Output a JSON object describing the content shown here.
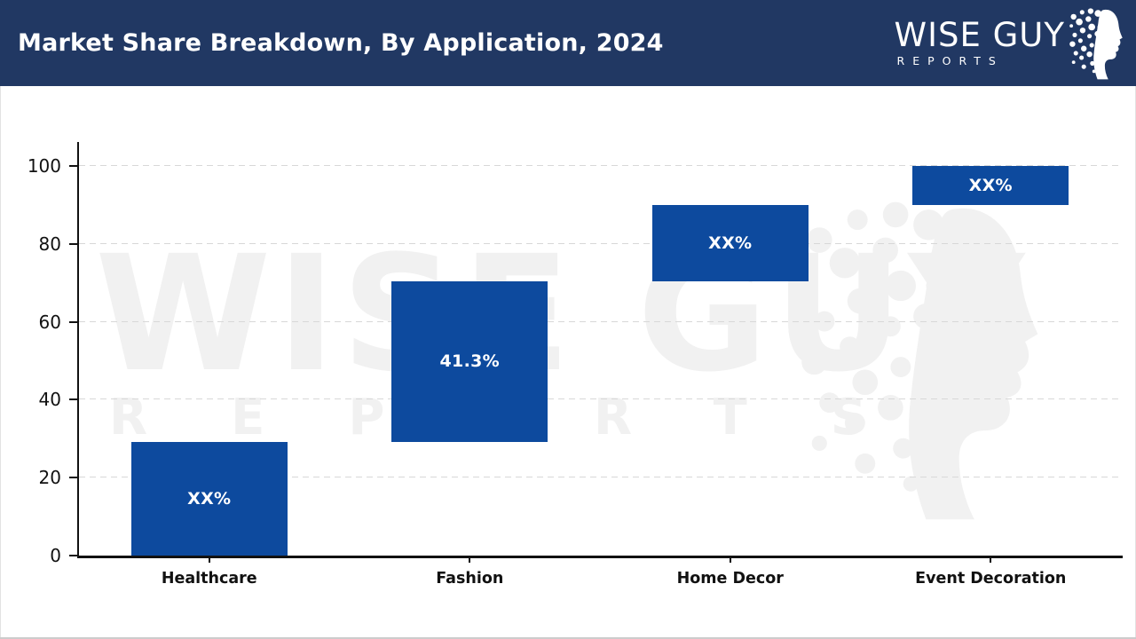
{
  "header": {
    "title": "Market Share Breakdown, By Application, 2024",
    "logo": {
      "line1": "WISE GUY",
      "line2": "REPORTS"
    }
  },
  "watermark": {
    "line1": "WISE GUY",
    "line2": "REPORTS"
  },
  "colors": {
    "header_bg": "#213863",
    "bar_blue": "#0d4a9e",
    "gridline": "#d8d8d8",
    "axis": "#111111",
    "bar_label_text": "#ffffff",
    "watermark": "#f1f1f1",
    "logo_text": "#ffffff"
  },
  "chart_data": {
    "type": "bar",
    "subtype": "waterfall-floating-bars",
    "title": "Market Share Breakdown, By Application, 2024",
    "categories": [
      "Healthcare",
      "Fashion",
      "Home Decor",
      "Event Decoration"
    ],
    "segments": [
      {
        "category": "Healthcare",
        "start": 0,
        "end": 29.2,
        "label": "XX%"
      },
      {
        "category": "Fashion",
        "start": 29.2,
        "end": 70.5,
        "label": "41.3%",
        "value": 41.3
      },
      {
        "category": "Home Decor",
        "start": 70.5,
        "end": 90.1,
        "label": "XX%"
      },
      {
        "category": "Event Decoration",
        "start": 90.1,
        "end": 100,
        "label": "XX%"
      }
    ],
    "yticks": [
      0,
      20,
      40,
      60,
      80,
      100
    ],
    "ylim": [
      0,
      106.2
    ],
    "xlabel": "",
    "ylabel": "",
    "grid": "horizontal-dashed",
    "legend": "none"
  }
}
